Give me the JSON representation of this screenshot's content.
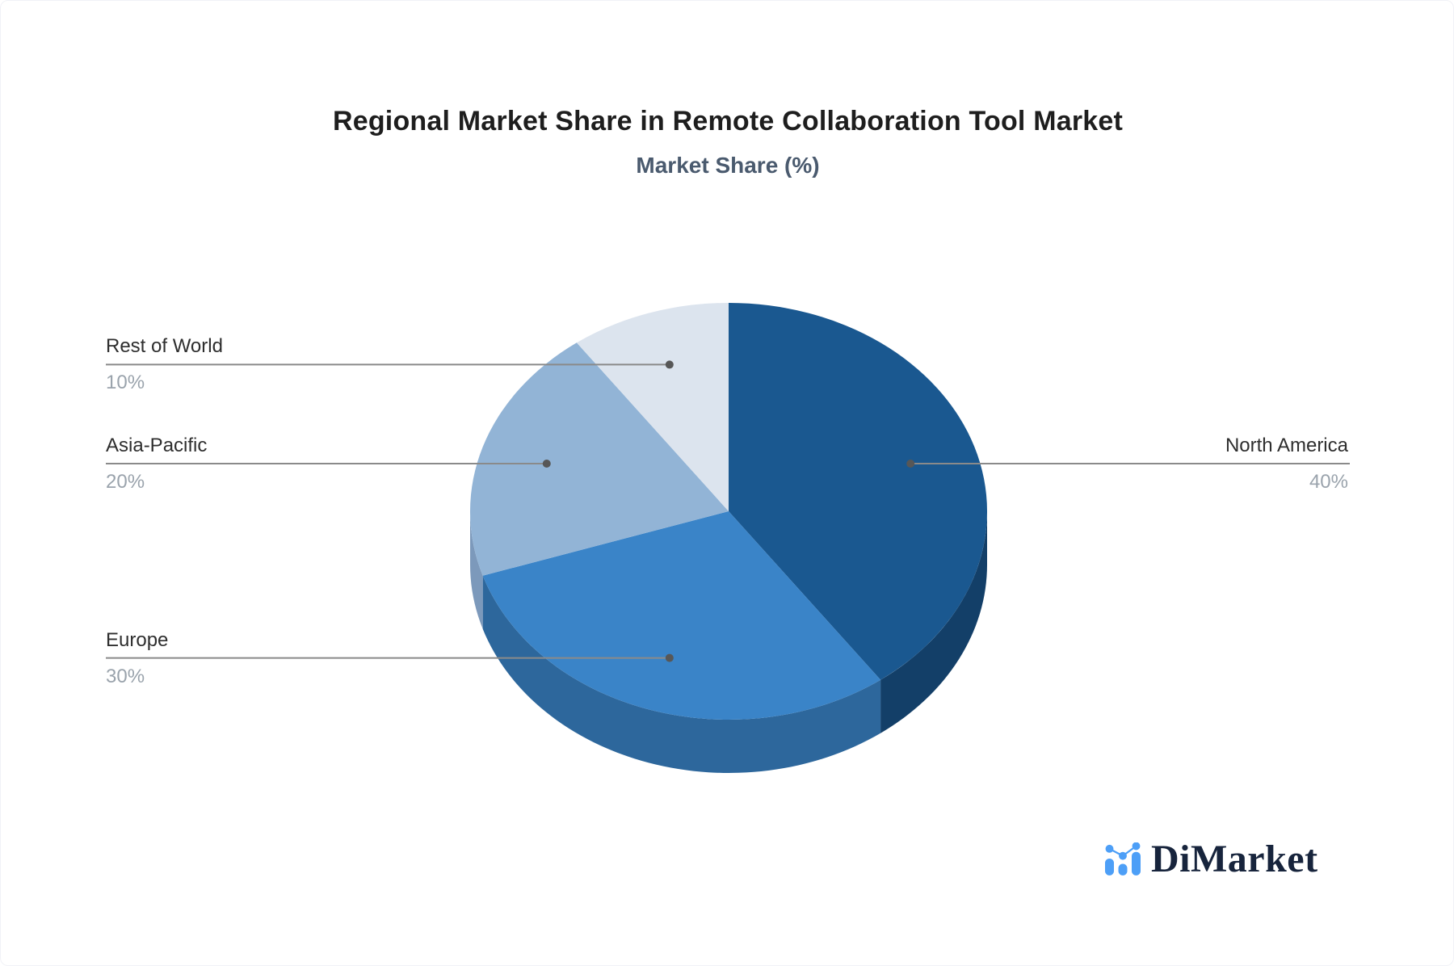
{
  "title": "Regional Market Share in Remote Collaboration Tool Market",
  "subtitle": "Market Share (%)",
  "chart_data": {
    "type": "pie",
    "style": "3d-pie",
    "title": "Regional Market Share in Remote Collaboration Tool Market",
    "subtitle": "Market Share (%)",
    "unit": "%",
    "start_angle": "12 o'clock",
    "direction": "clockwise",
    "labels": [
      "North America",
      "Europe",
      "Asia-Pacific",
      "Rest of World"
    ],
    "values": [
      40,
      30,
      20,
      10
    ],
    "display_values": [
      "40%",
      "30%",
      "20%",
      "10%"
    ],
    "label_sides": [
      "right",
      "left",
      "left",
      "left"
    ],
    "colors": [
      "#1A5890",
      "#3A84C8",
      "#92B4D6",
      "#DCE4EE"
    ],
    "side_colors": [
      "#133F68",
      "#2D679C",
      "#7C99BB",
      "#C7D1E0"
    ],
    "leader_line_color": "#8a8a8a",
    "leader_dot_color": "#575757",
    "legend_position": "none"
  },
  "brand": {
    "name": "DiMarket",
    "logo_color": "#4d9ff7",
    "text_color": "#17243c"
  }
}
